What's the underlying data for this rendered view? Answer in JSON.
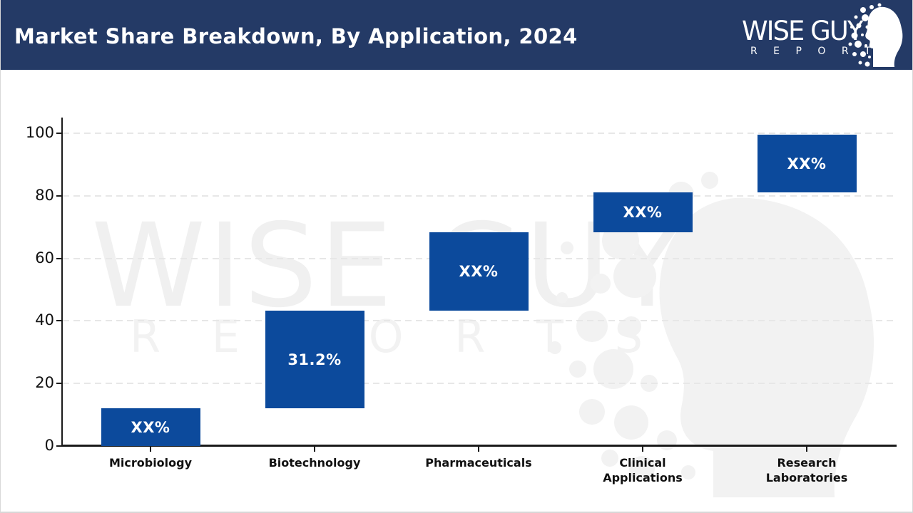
{
  "header": {
    "title": "Market Share Breakdown, By Application, 2024",
    "brand": {
      "name": "WISE GUY",
      "sub": "R E P O R T S"
    }
  },
  "watermark": {
    "line1": "WISE GUY",
    "line2": "R E P O R T S"
  },
  "colors": {
    "header_bg": "#243a66",
    "bar": "#0c4a9c",
    "bar_label": "#ffffff",
    "watermark": "#f0f0f0",
    "gridline": "#e7e7e7",
    "axis": "#1a1a1a"
  },
  "chart_data": {
    "type": "bar",
    "subtype": "floating-waterfall",
    "title": "Market Share Breakdown, By Application, 2024",
    "categories": [
      "Microbiology",
      "Biotechnology",
      "Pharmaceuticals",
      "Clinical Applications",
      "Research Laboratories"
    ],
    "bars": [
      {
        "category": "Microbiology",
        "from": 0,
        "to": 12,
        "label": "XX%"
      },
      {
        "category": "Biotechnology",
        "from": 12,
        "to": 43.2,
        "label": "31.2%",
        "value": 31.2
      },
      {
        "category": "Pharmaceuticals",
        "from": 43.2,
        "to": 68.4,
        "label": "XX%"
      },
      {
        "category": "Clinical Applications",
        "from": 68.4,
        "to": 81,
        "label": "XX%"
      },
      {
        "category": "Research Laboratories",
        "from": 81,
        "to": 99.5,
        "label": "XX%"
      }
    ],
    "xlabel": "",
    "ylabel": "",
    "yticks": [
      0,
      20,
      40,
      60,
      80,
      100
    ],
    "ylim": [
      0,
      105
    ],
    "grid": {
      "axis": "y",
      "style": "dashed"
    },
    "legend": "none",
    "bar_color": "#0c4a9c",
    "bar_label_color": "#ffffff"
  }
}
